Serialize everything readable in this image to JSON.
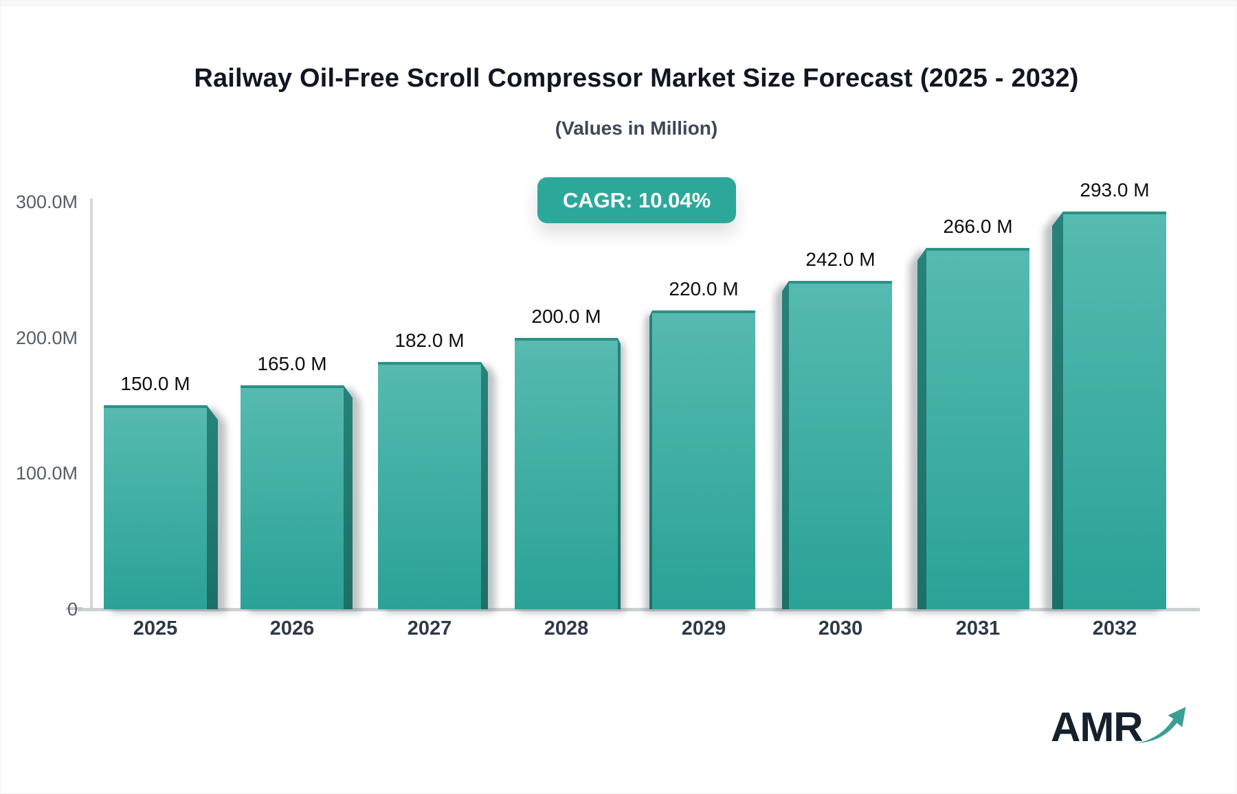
{
  "header": {
    "title": "Railway Oil-Free Scroll Compressor Market Size Forecast (2025 - 2032)",
    "subtitle": "(Values in Million)",
    "cagr_label": "CAGR: 10.04%"
  },
  "logo": {
    "text": "AMR"
  },
  "chart_data": {
    "type": "bar",
    "title": "Railway Oil-Free Scroll Compressor Market Size Forecast (2025 - 2032)",
    "subtitle": "(Values in Million)",
    "cagr": "10.04%",
    "categories": [
      "2025",
      "2026",
      "2027",
      "2028",
      "2029",
      "2030",
      "2031",
      "2032"
    ],
    "values": [
      150,
      165,
      182,
      200,
      220,
      242,
      266,
      293
    ],
    "value_labels": [
      "150.0 M",
      "165.0 M",
      "182.0 M",
      "200.0 M",
      "220.0 M",
      "242.0 M",
      "266.0 M",
      "293.0 M"
    ],
    "y_ticks": [
      {
        "label": "300.0M",
        "value": 300
      },
      {
        "label": "200.0M",
        "value": 200
      },
      {
        "label": "100.0M",
        "value": 100
      },
      {
        "label": "0",
        "value": 0
      }
    ],
    "ylim": [
      0,
      300
    ],
    "grid": "off",
    "legend": "none",
    "colors": {
      "bar_top": "#56bab0",
      "bar_bottom": "#2aa296",
      "bar_top_edge": "#2b9187",
      "bar_side_top": "#26837a",
      "bar_side_bottom": "#1c6f66",
      "badge_bg": "#2ca89b",
      "axis": "#ccd0d4",
      "title_text": "#101622",
      "subtitle_text": "#3d4857",
      "year_text": "#2e3947",
      "ytick_text": "#545e6b",
      "logo_text": "#15202c",
      "logo_arrow": "#3a9e93"
    }
  }
}
